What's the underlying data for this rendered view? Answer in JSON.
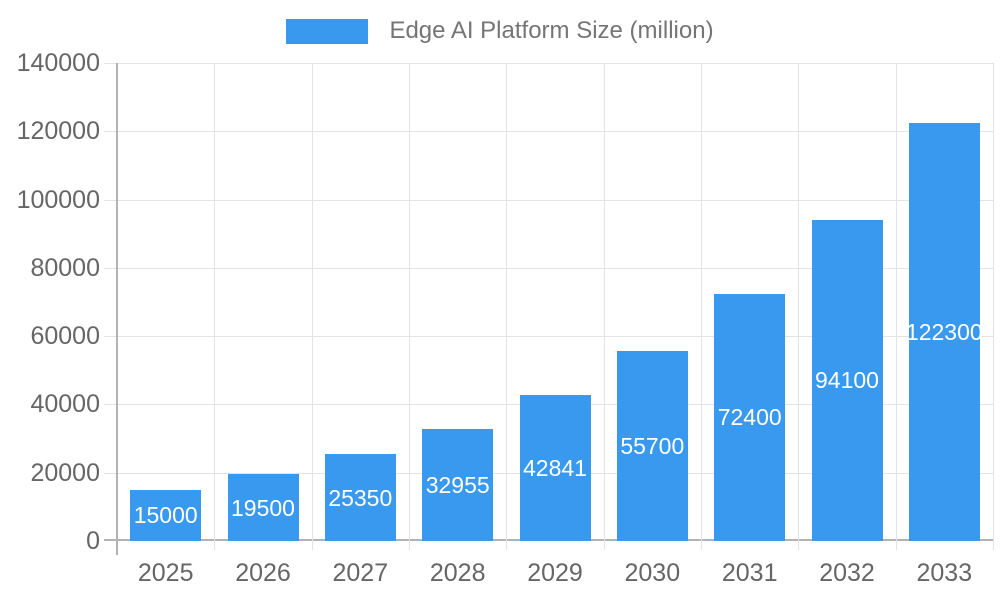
{
  "chart_data": {
    "type": "bar",
    "title": "Edge AI Platform Size (million)",
    "series_name": "Edge AI Platform Size (million)",
    "categories": [
      "2025",
      "2026",
      "2027",
      "2028",
      "2029",
      "2030",
      "2031",
      "2032",
      "2033"
    ],
    "values": [
      15000,
      19500,
      25350,
      32955,
      42841,
      55700,
      72400,
      94100,
      122300
    ],
    "bar_labels": [
      "15000",
      "19500",
      "25350",
      "32955",
      "42841",
      "55700",
      "72400",
      "94100",
      "122300"
    ],
    "xlabel": "",
    "ylabel": "",
    "ylim": [
      0,
      140000
    ],
    "ytick_step": 20000,
    "ytick_labels": [
      "0",
      "20000",
      "40000",
      "60000",
      "80000",
      "100000",
      "120000",
      "140000"
    ],
    "grid": "on",
    "legend_position": "top",
    "colors": {
      "bar": "#3999EE",
      "bar_label_text": "#FFFFFF",
      "axis_text": "#666666",
      "legend_text": "#757575",
      "gridline": "#E3E3E3",
      "axis_line": "#B3B3B3",
      "background": "#FFFFFF"
    }
  }
}
